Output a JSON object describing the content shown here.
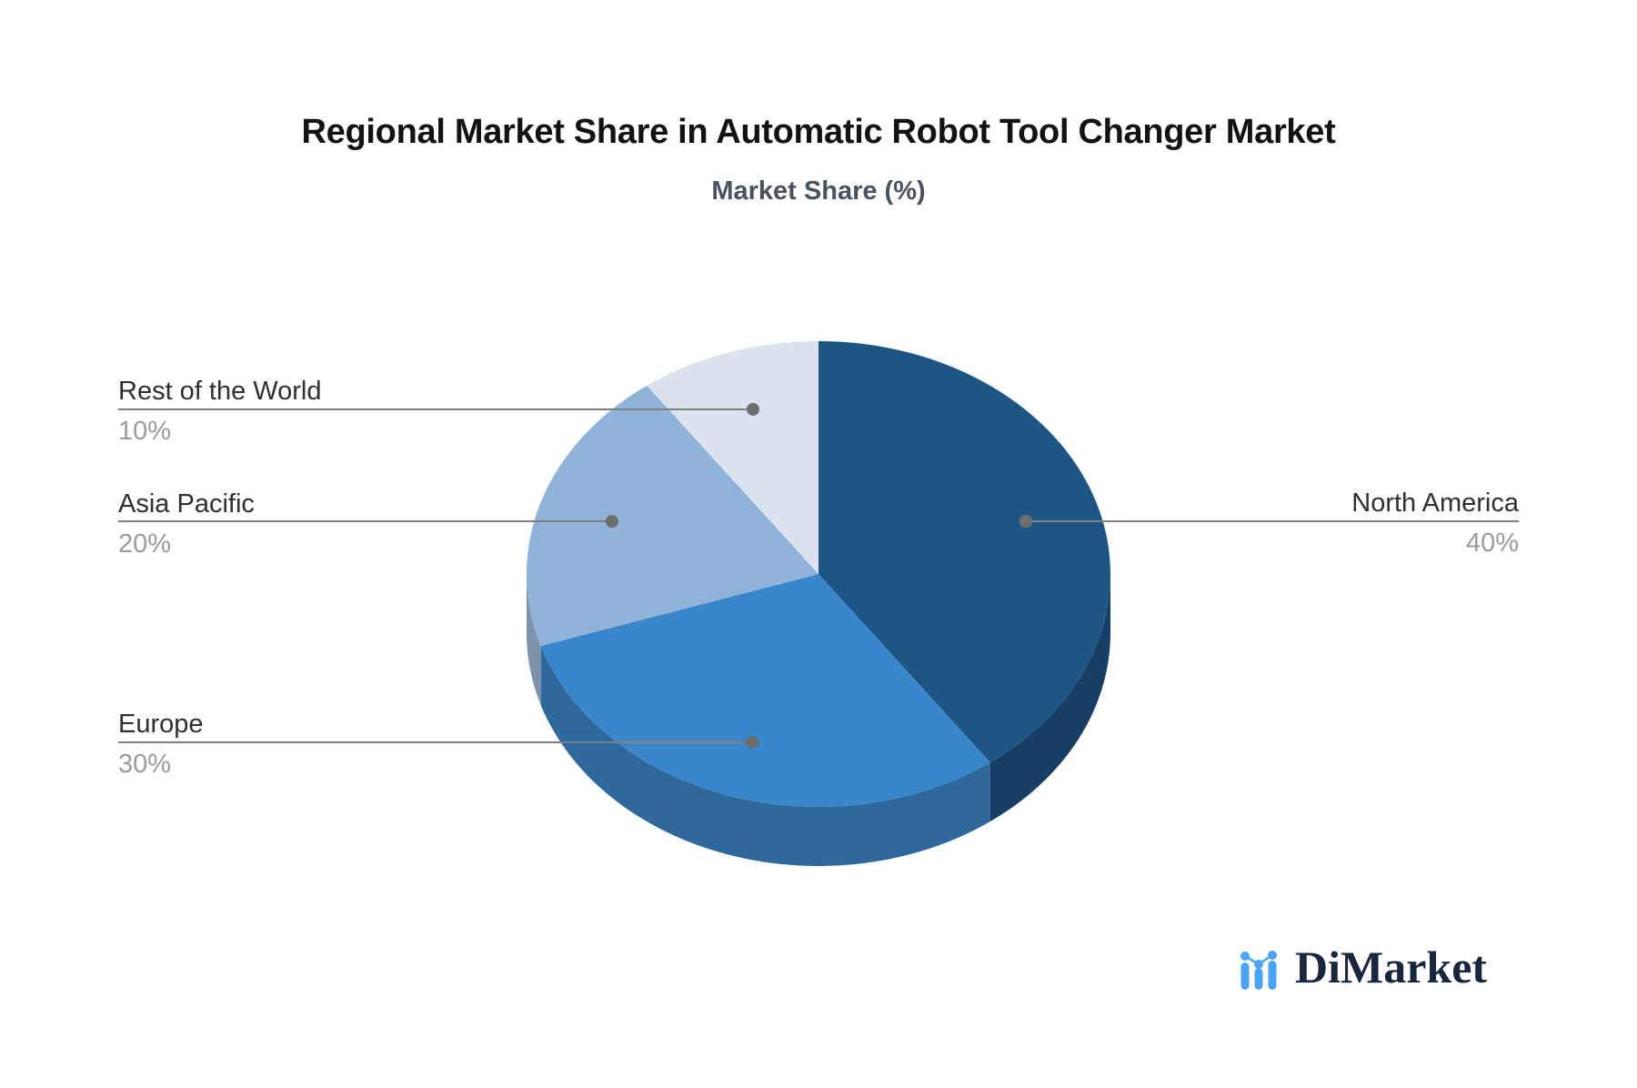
{
  "chart_data": {
    "type": "pie",
    "style": "3d",
    "title": "Regional Market Share in Automatic Robot Tool Changer Market",
    "subtitle": "Market Share (%)",
    "unit": "%",
    "labels": [
      "North America",
      "Europe",
      "Asia Pacific",
      "Rest of the World"
    ],
    "values": [
      40,
      30,
      20,
      10
    ],
    "display_values": [
      "40%",
      "30%",
      "20%",
      "10%"
    ],
    "start_angle_deg": 90,
    "clockwise": true,
    "legend_position": "callout-labels",
    "colors": {
      "faces": [
        "#1D5585",
        "#3A86CA",
        "#90B3D9",
        "#DBE3EF"
      ],
      "sides": [
        "#173E64",
        "#2E689D",
        "#7E93AB",
        "#C2CBDA"
      ],
      "leader_line": "#7F7F7F",
      "leader_dot": "#6E6E6E",
      "title_text": "#101214",
      "subtitle_text": "#49525F",
      "label_text": "#2F2F2F",
      "percent_text": "#9B9B9B"
    }
  },
  "logo": {
    "text": "DiMarket",
    "icon": "bar-chart-logo-icon",
    "text_color": "#18273E",
    "bar_color": "#4BA4F0"
  }
}
